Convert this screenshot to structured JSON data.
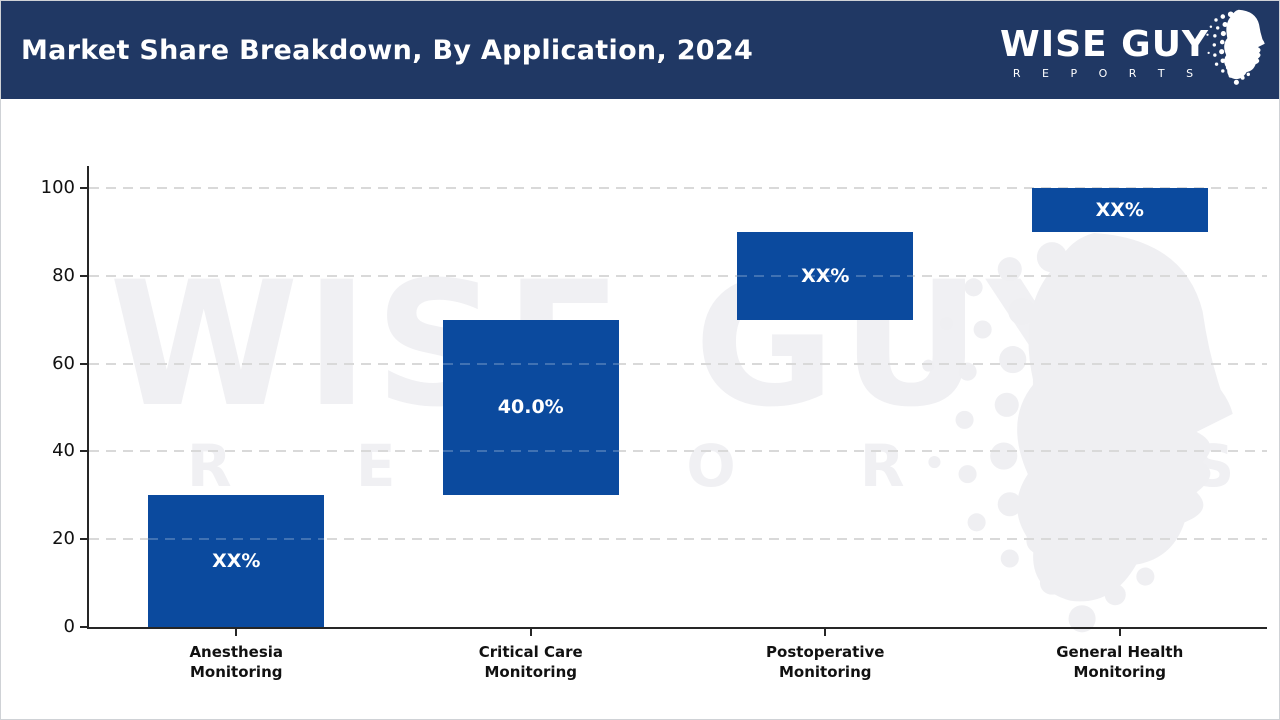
{
  "header": {
    "title": "Market Share Breakdown, By Application, 2024",
    "bg_color": "#203864",
    "brand": {
      "name": "WISE GUY",
      "sub": "R E P O R T S"
    }
  },
  "watermark": {
    "word": "WISE GUY",
    "sub": "R E P O R T S"
  },
  "chart_data": {
    "type": "bar",
    "subtype": "waterfall",
    "title": "Market Share Breakdown, By Application, 2024",
    "categories": [
      "Anesthesia Monitoring",
      "Critical Care Monitoring",
      "Postoperative Monitoring",
      "General Health Monitoring"
    ],
    "series": [
      {
        "name": "Anesthesia Monitoring",
        "name_lines": "Anesthesia\nMonitoring",
        "start": 0,
        "end": 30,
        "value": 30,
        "label": "XX%"
      },
      {
        "name": "Critical Care Monitoring",
        "name_lines": "Critical Care\nMonitoring",
        "start": 30,
        "end": 70,
        "value": 40,
        "label": "40.0%"
      },
      {
        "name": "Postoperative Monitoring",
        "name_lines": "Postoperative\nMonitoring",
        "start": 70,
        "end": 90,
        "value": 20,
        "label": "XX%"
      },
      {
        "name": "General Health Monitoring",
        "name_lines": "General Health\nMonitoring",
        "start": 90,
        "end": 100,
        "value": 10,
        "label": "XX%"
      }
    ],
    "yticks": [
      0,
      20,
      40,
      60,
      80,
      100
    ],
    "ylim": [
      0,
      105
    ],
    "grid": true,
    "legend": false,
    "bar_color": "#0b4a9e",
    "bar_label_color": "#ffffff",
    "gridline_color": "#d9d9d9",
    "axis_color": "#262626",
    "watermark_color": "#f0f0f3"
  }
}
